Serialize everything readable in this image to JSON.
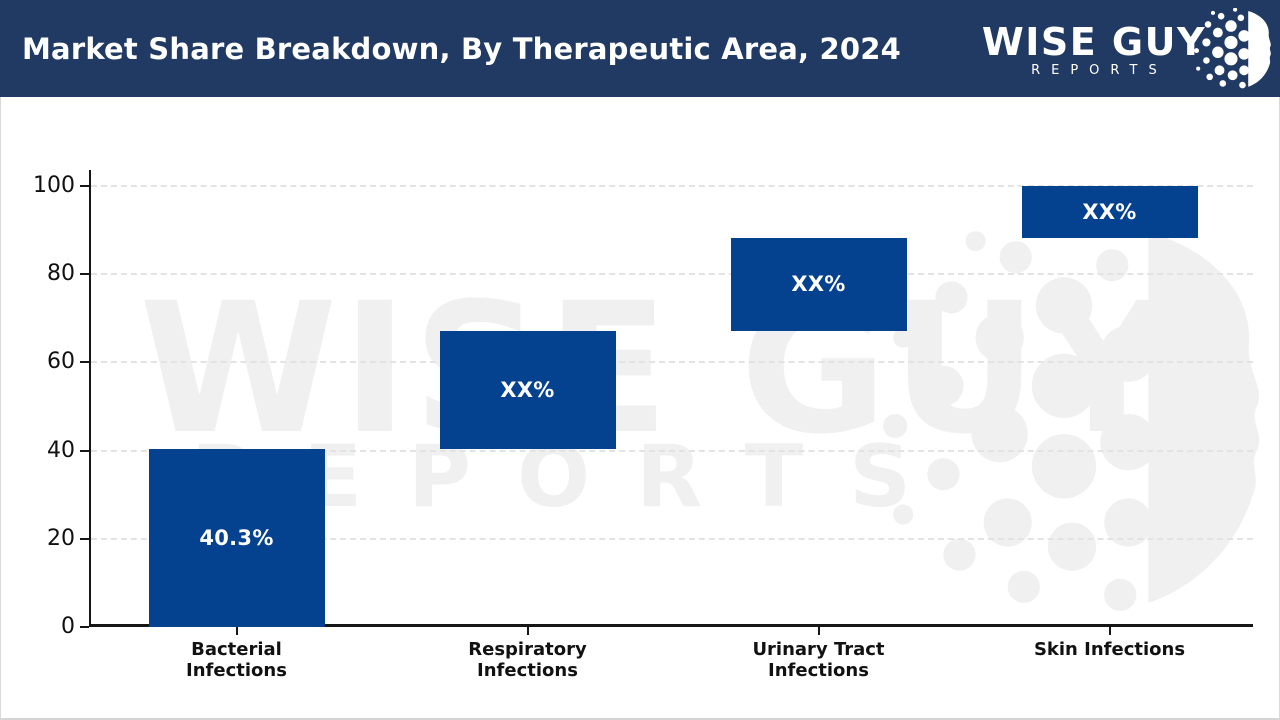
{
  "header": {
    "title": "Market Share Breakdown, By Therapeutic Area, 2024",
    "bg_color": "#203a64",
    "logo": {
      "line1": "WISE GUY",
      "line2": "REPORTS"
    }
  },
  "watermark": {
    "line1": "WISE GUY",
    "line2": "REPORTS"
  },
  "chart_data": {
    "type": "bar",
    "subtype": "waterfall",
    "title": "Market Share Breakdown, By Therapeutic Area, 2024",
    "categories": [
      "Bacterial Infections",
      "Respiratory Infections",
      "Urinary Tract Infections",
      "Skin Infections"
    ],
    "category_lines": [
      [
        "Bacterial",
        "Infections"
      ],
      [
        "Respiratory",
        "Infections"
      ],
      [
        "Urinary Tract",
        "Infections"
      ],
      [
        "Skin Infections"
      ]
    ],
    "segments": [
      {
        "category": "Bacterial Infections",
        "start": 0,
        "end": 40.3,
        "label": "40.3%"
      },
      {
        "category": "Respiratory Infections",
        "start": 40.3,
        "end": 67.2,
        "label": "XX%"
      },
      {
        "category": "Urinary Tract Infections",
        "start": 67.2,
        "end": 88.2,
        "label": "XX%"
      },
      {
        "category": "Skin Infections",
        "start": 88.2,
        "end": 100,
        "label": "XX%"
      }
    ],
    "yticks": [
      0,
      20,
      40,
      60,
      80,
      100
    ],
    "ylim": [
      0,
      103.6
    ],
    "xlabel": "",
    "ylabel": "",
    "grid": "horizontal-dashed",
    "legend": "none",
    "colors": {
      "bar": "#04428f",
      "bar_label": "#ffffff",
      "grid": "#e3e3e3",
      "axis": "#161616",
      "header_bg": "#203a64",
      "watermark": "#f0f0f1"
    }
  }
}
